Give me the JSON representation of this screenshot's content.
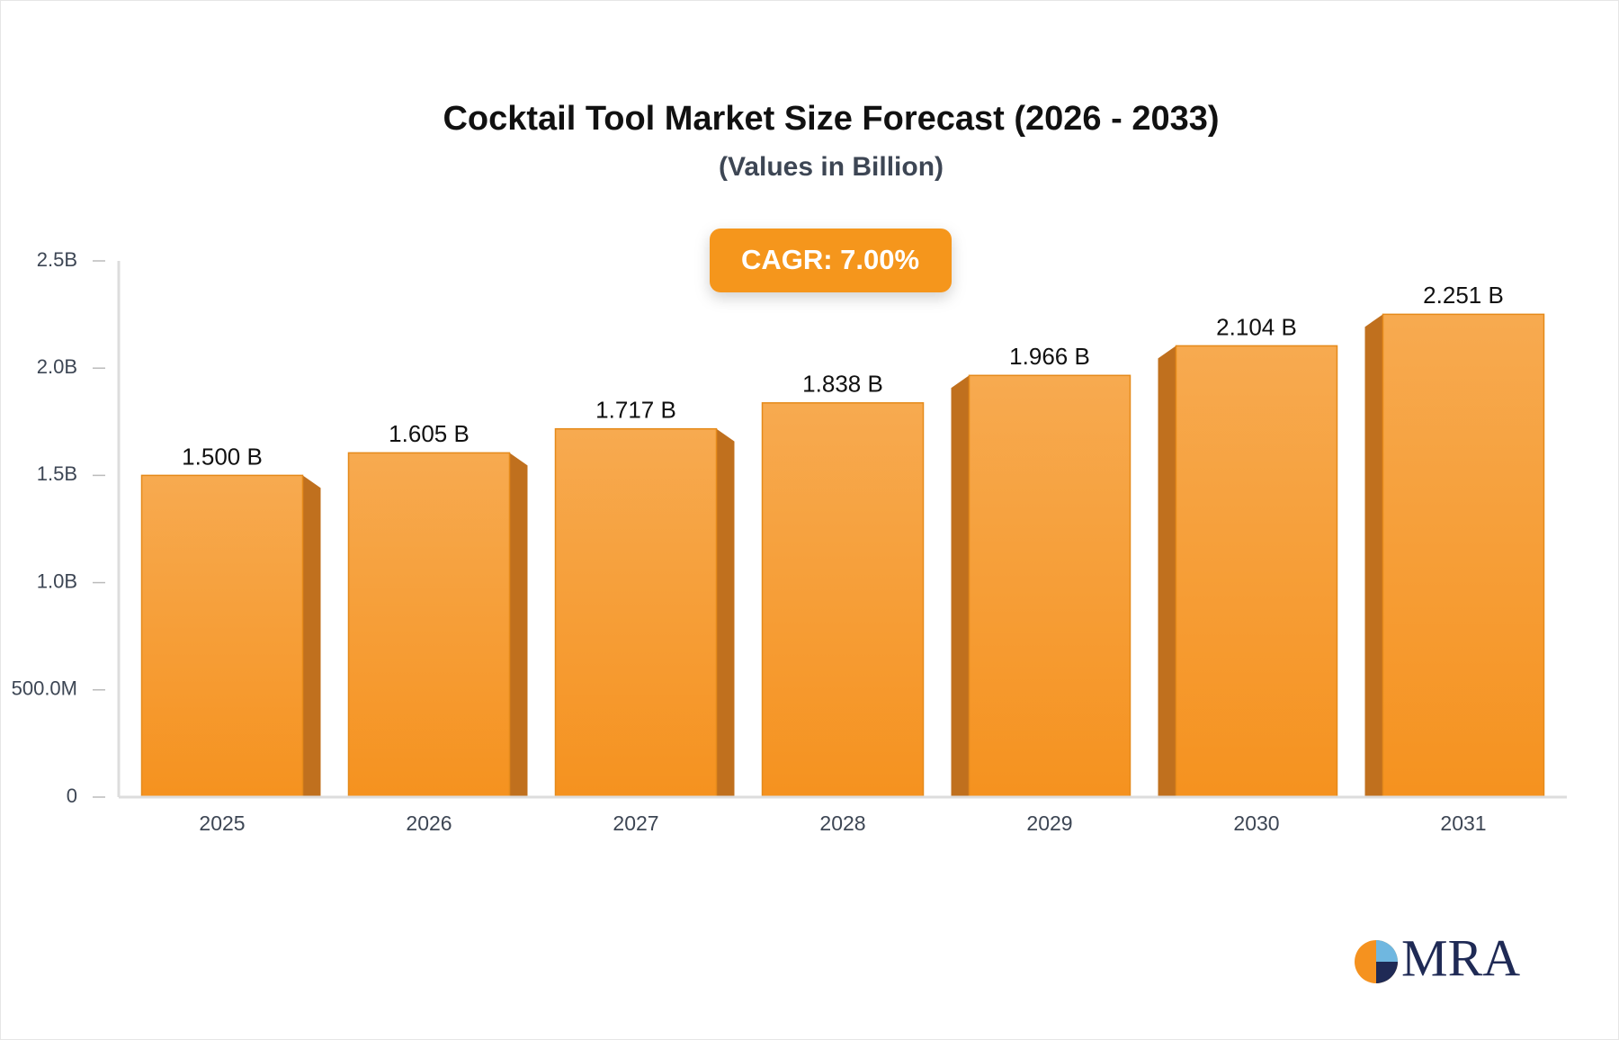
{
  "chart_data": {
    "type": "bar",
    "title": "Cocktail Tool Market Size Forecast (2026 - 2033)",
    "subtitle": "(Values in Billion)",
    "annotation": "CAGR: 7.00%",
    "logo": "MRA",
    "categories": [
      "2025",
      "2026",
      "2027",
      "2028",
      "2029",
      "2030",
      "2031"
    ],
    "values": [
      1.5,
      1.605,
      1.717,
      1.838,
      1.966,
      2.104,
      2.251
    ],
    "value_labels": [
      "1.500 B",
      "1.605 B",
      "1.717 B",
      "1.838 B",
      "1.966 B",
      "2.104 B",
      "2.251 B"
    ],
    "color": "#f5961f",
    "ylim": [
      0,
      2.5
    ],
    "yticks": [
      0,
      {
        "value": 0.5,
        "label": "500.0M"
      },
      {
        "value": 1,
        "label": "1.0B"
      },
      {
        "value": 1.5,
        "label": "1.5B"
      },
      {
        "value": 2,
        "label": "2.0B"
      },
      {
        "value": 2.5,
        "label": "2.5B"
      }
    ],
    "grid": false
  }
}
